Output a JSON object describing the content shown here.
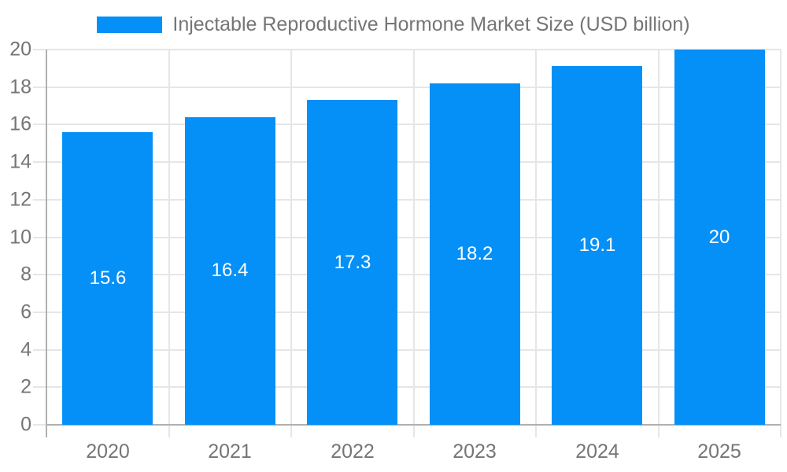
{
  "legend": {
    "label": "Injectable Reproductive Hormone Market Size (USD billion)"
  },
  "chart_data": {
    "type": "bar",
    "title": "Injectable Reproductive Hormone Market Size (USD billion)",
    "categories": [
      "2020",
      "2021",
      "2022",
      "2023",
      "2024",
      "2025"
    ],
    "values": [
      15.6,
      16.4,
      17.3,
      18.2,
      19.1,
      20
    ],
    "bar_labels": [
      "15.6",
      "16.4",
      "17.3",
      "18.2",
      "19.1",
      "20"
    ],
    "xlabel": "",
    "ylabel": "",
    "ylim": [
      0,
      20
    ],
    "ytick_step": 2,
    "ytick_labels": [
      "0",
      "2",
      "4",
      "6",
      "8",
      "10",
      "12",
      "14",
      "16",
      "18",
      "20"
    ],
    "grid": true,
    "legend_position": "top",
    "colors": {
      "bar": "#0590f8",
      "bar_label_text": "#ffffff",
      "axis_text": "#757575",
      "gridline": "#e6e6e6",
      "axis_line": "#b0b0b0"
    }
  }
}
